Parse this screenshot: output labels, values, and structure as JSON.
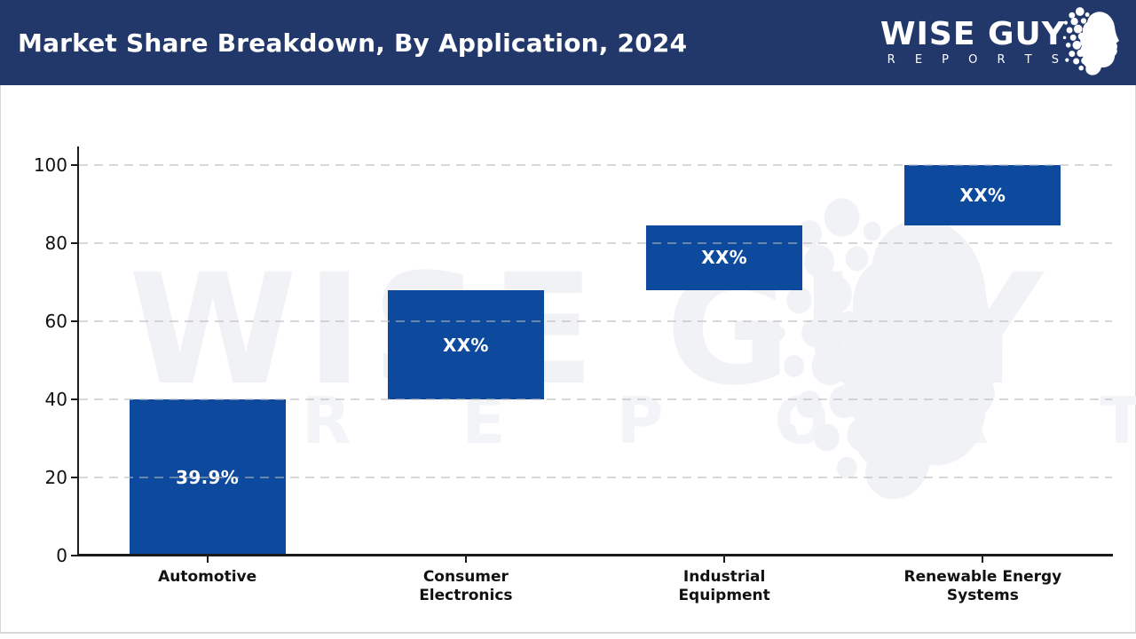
{
  "header": {
    "title": "Market Share Breakdown, By Application, 2024"
  },
  "logo": {
    "line1": "WISE GUY",
    "line2": "R E P O R T S",
    "icon": "wiseguy-head-icon"
  },
  "watermark": {
    "line1": "WISE GUY",
    "line2": "R E P O R T S",
    "icon": "wiseguy-head-icon"
  },
  "colors": {
    "header_bg": "#22386a",
    "title_text": "#ffffff",
    "bar": "#0d4a9e",
    "bar_label": "#ffffff",
    "grid": "#dcdcdc",
    "axis": "#1a1a1a",
    "tick_label": "#111111",
    "watermark": "#f1f2f5"
  },
  "chart_data": {
    "type": "bar",
    "subtype": "waterfall-stacked",
    "title": "Market Share Breakdown, By Application, 2024",
    "categories": [
      "Automotive",
      "Consumer\nElectronics",
      "Industrial\nEquipment",
      "Renewable Energy\nSystems"
    ],
    "bars": [
      {
        "category": "Automotive",
        "start": 0,
        "end": 39.9,
        "value_label": "39.9%"
      },
      {
        "category": "Consumer Electronics",
        "start": 39.9,
        "end": 68,
        "value_label": "XX%"
      },
      {
        "category": "Industrial Equipment",
        "start": 68,
        "end": 84.5,
        "value_label": "XX%"
      },
      {
        "category": "Renewable Energy Systems",
        "start": 84.5,
        "end": 100,
        "value_label": "XX%"
      }
    ],
    "xlabel": "",
    "ylabel": "",
    "ylim": [
      0,
      100
    ],
    "yticks": [
      0,
      20,
      40,
      60,
      80,
      100
    ],
    "grid": true,
    "grid_style": "dashed",
    "legend": false,
    "bar_color": "#0d4a9e"
  }
}
